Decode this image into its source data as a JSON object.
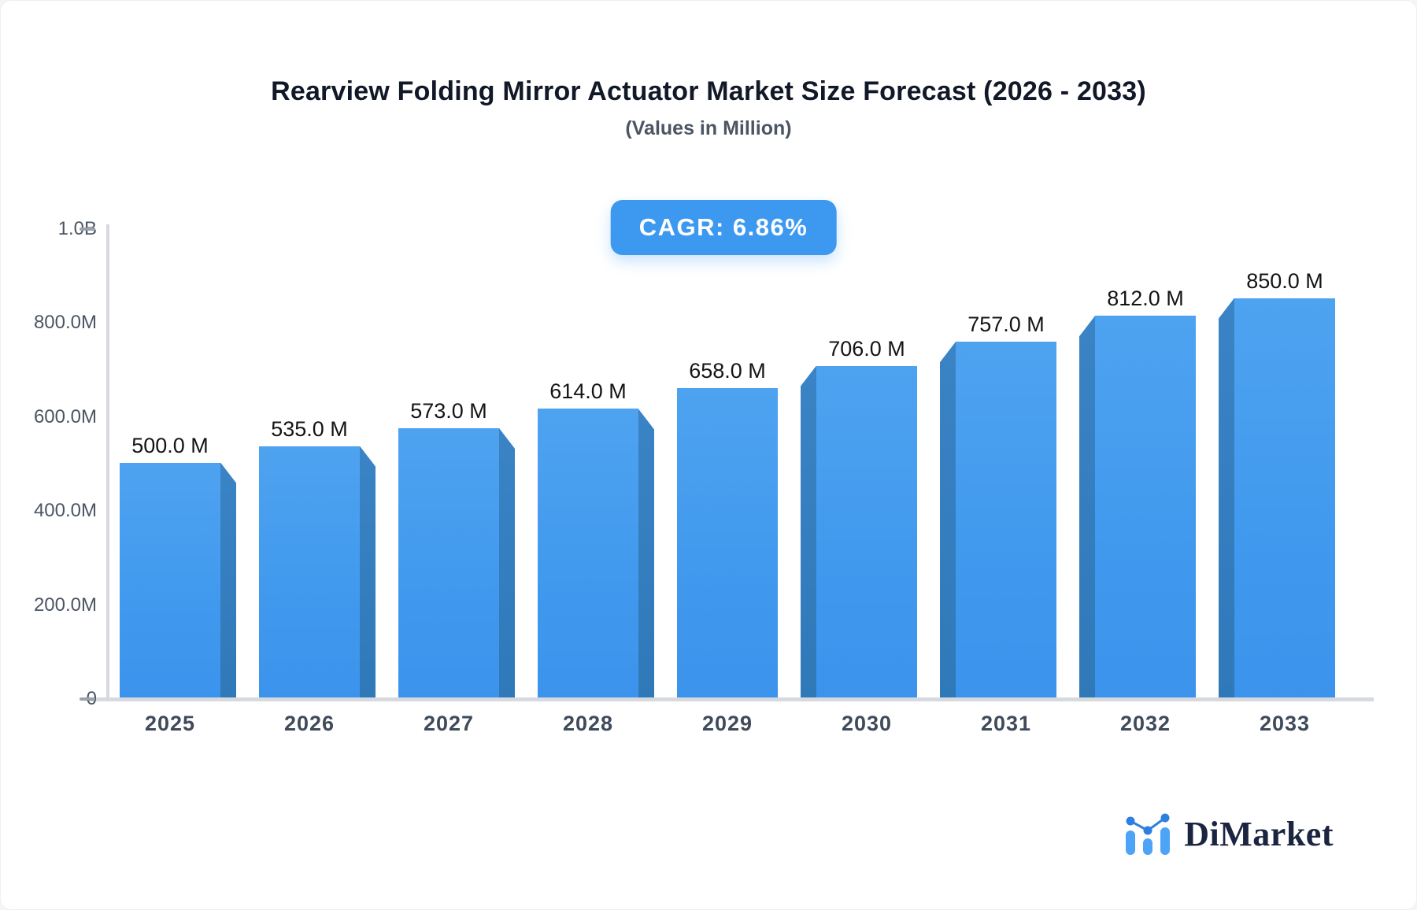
{
  "page": {
    "title": "Rearview Folding Mirror Actuator Market Size Forecast (2026 - 2033)",
    "subtitle": "(Values in Million)"
  },
  "badge": {
    "label": "CAGR: 6.86%"
  },
  "logo": {
    "name": "DiMarket",
    "icon": "mini-bar-chart-icon"
  },
  "chart_data": {
    "type": "bar",
    "title": "Rearview Folding Mirror Actuator Market Size Forecast (2026 - 2033)",
    "subtitle": "(Values in Million)",
    "xlabel": "",
    "ylabel": "",
    "unit": "Million",
    "categories": [
      "2025",
      "2026",
      "2027",
      "2028",
      "2029",
      "2030",
      "2031",
      "2032",
      "2033"
    ],
    "values": [
      500,
      535,
      573,
      614,
      658,
      706,
      757,
      812,
      850
    ],
    "value_labels": [
      "500.0 M",
      "535.0 M",
      "573.0 M",
      "614.0 M",
      "658.0 M",
      "706.0 M",
      "757.0 M",
      "812.0 M",
      "850.0 M"
    ],
    "ylim": [
      0,
      1000
    ],
    "yticks": [
      {
        "label": "1.0B",
        "value": 1000,
        "dash": true
      },
      {
        "label": "800.0M",
        "value": 800,
        "dash": false
      },
      {
        "label": "600.0M",
        "value": 600,
        "dash": false
      },
      {
        "label": "400.0M",
        "value": 400,
        "dash": false
      },
      {
        "label": "200.0M",
        "value": 200,
        "dash": false
      },
      {
        "label": "0",
        "value": 0,
        "dash": true
      }
    ],
    "grid": false,
    "legend": false,
    "colors": {
      "bar_front": "#429aee",
      "bar_side": "#2f79b9",
      "axis_line": "#d6d9df",
      "badge_bg": "#3d99f0",
      "label_text": "#141414",
      "brand_navy": "#1b2440",
      "brand_blue": "#4da3f5"
    }
  }
}
